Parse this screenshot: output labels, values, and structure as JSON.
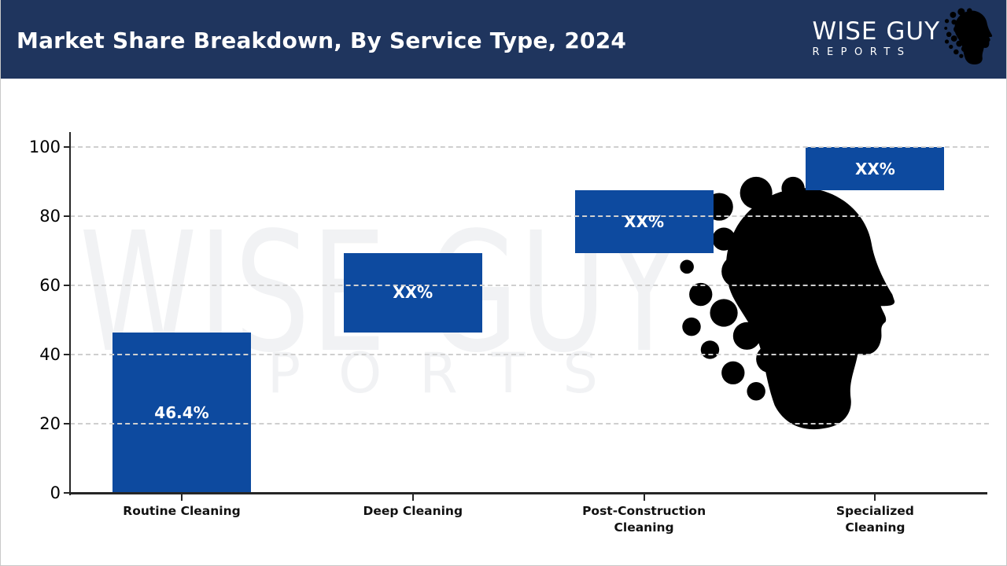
{
  "header": {
    "title": "Market Share Breakdown, By Service Type, 2024",
    "brand": {
      "name": "WISE GUY",
      "subtitle": "REPORTS"
    }
  },
  "watermark": {
    "line1": "WISE GUY",
    "line2": "REPORTS"
  },
  "chart_data": {
    "type": "bar",
    "variant": "floating-waterfall",
    "title": "Market Share Breakdown, By Service Type, 2024",
    "categories": [
      "Routine Cleaning",
      "Deep Cleaning",
      "Post-Construction Cleaning",
      "Specialized Cleaning"
    ],
    "category_lines": [
      [
        "Routine Cleaning"
      ],
      [
        "Deep Cleaning"
      ],
      [
        "Post-Construction",
        "Cleaning"
      ],
      [
        "Specialized",
        "Cleaning"
      ]
    ],
    "segments": [
      {
        "category": "Routine Cleaning",
        "start": 0,
        "end": 46.4,
        "label": "46.4%"
      },
      {
        "category": "Deep Cleaning",
        "start": 46.4,
        "end": 69.3,
        "label": "XX%"
      },
      {
        "category": "Post-Construction Cleaning",
        "start": 69.3,
        "end": 87.5,
        "label": "XX%"
      },
      {
        "category": "Specialized Cleaning",
        "start": 87.5,
        "end": 100,
        "label": "XX%"
      }
    ],
    "ylim": [
      0,
      100
    ],
    "yticks": [
      0,
      20,
      40,
      60,
      80,
      100
    ],
    "grid": {
      "horizontal": true,
      "style": "dashed"
    },
    "legend": "none",
    "bar_color": "#0d4a9f",
    "bar_label_color": "#ffffff"
  },
  "colors": {
    "header_bg": "#1f355e",
    "title_text": "#ffffff",
    "axis": "#262626",
    "tick_text": "#000000",
    "gridline": "#cfcfcf",
    "watermark": "#f1f2f4",
    "background": "#ffffff"
  }
}
